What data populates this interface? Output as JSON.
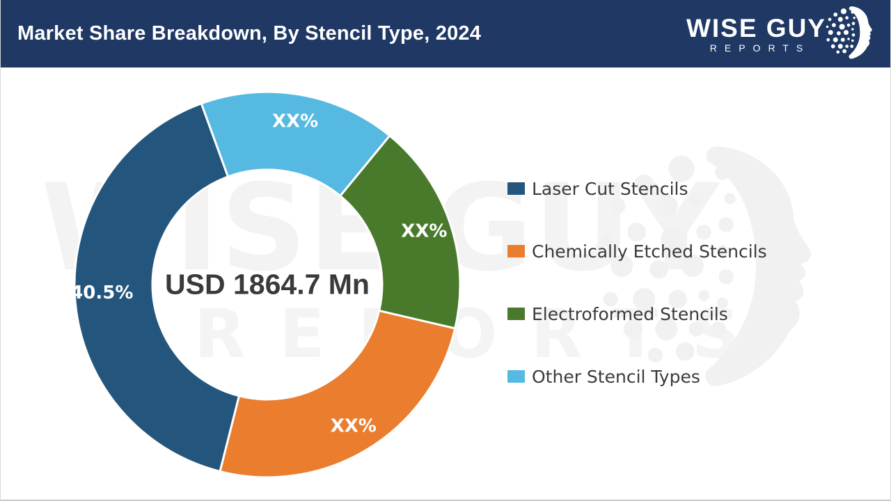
{
  "header": {
    "title": "Market Share Breakdown, By Stencil Type, 2024",
    "logo": {
      "line1": "WISE GUY",
      "line2": "REPORTS"
    }
  },
  "watermark": {
    "line1": "WISE GUY",
    "line2": "REPORTS"
  },
  "chart_data": {
    "type": "pie",
    "subtype": "donut",
    "title": "Market Share Breakdown, By Stencil Type, 2024",
    "center_label": "USD 1864.7 Mn",
    "legend_position": "right",
    "start_angle_deg_cw_from_top": -20,
    "direction": "counterclockwise",
    "segments": [
      {
        "name": "Laser Cut Stencils",
        "value_pct": 40.5,
        "label": "40.5%",
        "color": "#24567D"
      },
      {
        "name": "Chemically Etched Stencils",
        "value_pct": 25.3,
        "label": "XX%",
        "color": "#EB7D2F"
      },
      {
        "name": "Electroformed Stencils",
        "value_pct": 17.7,
        "label": "XX%",
        "color": "#497A2C"
      },
      {
        "name": "Other Stencil Types",
        "value_pct": 16.5,
        "label": "XX%",
        "color": "#55B9E2"
      }
    ]
  },
  "colors": {
    "header_bg": "#1F3864",
    "text_dark": "#3a3a3a",
    "watermark": "#f3f3f3",
    "page_border": "#c9c9c9"
  }
}
